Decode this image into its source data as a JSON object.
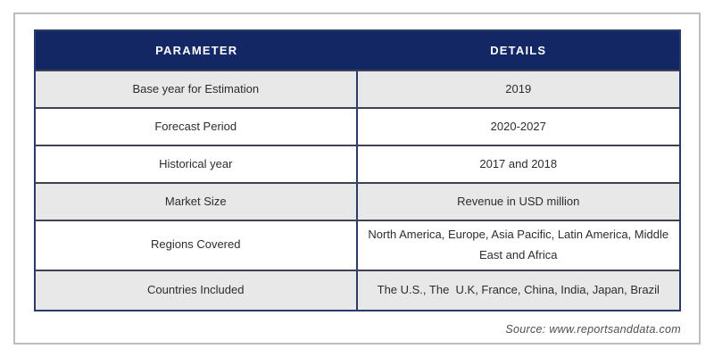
{
  "colors": {
    "header_bg": "#122763",
    "header_text": "#ffffff",
    "shaded_row_bg": "#e8e8e8",
    "table_border": "#2a3a6b",
    "row_divider": "#3d4350",
    "body_text": "#2d2d2d",
    "source_text": "#4f4f4f",
    "frame_border": "#bdbdbd"
  },
  "table": {
    "columns": [
      "PARAMETER",
      "DETAILS"
    ],
    "rows": [
      {
        "parameter": "Base year for Estimation",
        "details": "2019"
      },
      {
        "parameter": "Forecast Period",
        "details": "2020-2027"
      },
      {
        "parameter": "Historical year",
        "details": "2017 and 2018"
      },
      {
        "parameter": "Market Size",
        "details": "Revenue in USD million"
      },
      {
        "parameter": "Regions Covered",
        "details": "North America, Europe, Asia Pacific, Latin America, Middle East and Africa"
      },
      {
        "parameter": "Countries Included",
        "details": "The U.S., The  U.K, France, China, India, Japan, Brazil"
      }
    ]
  },
  "source": {
    "label": "Source: www.reportsanddata.com"
  }
}
